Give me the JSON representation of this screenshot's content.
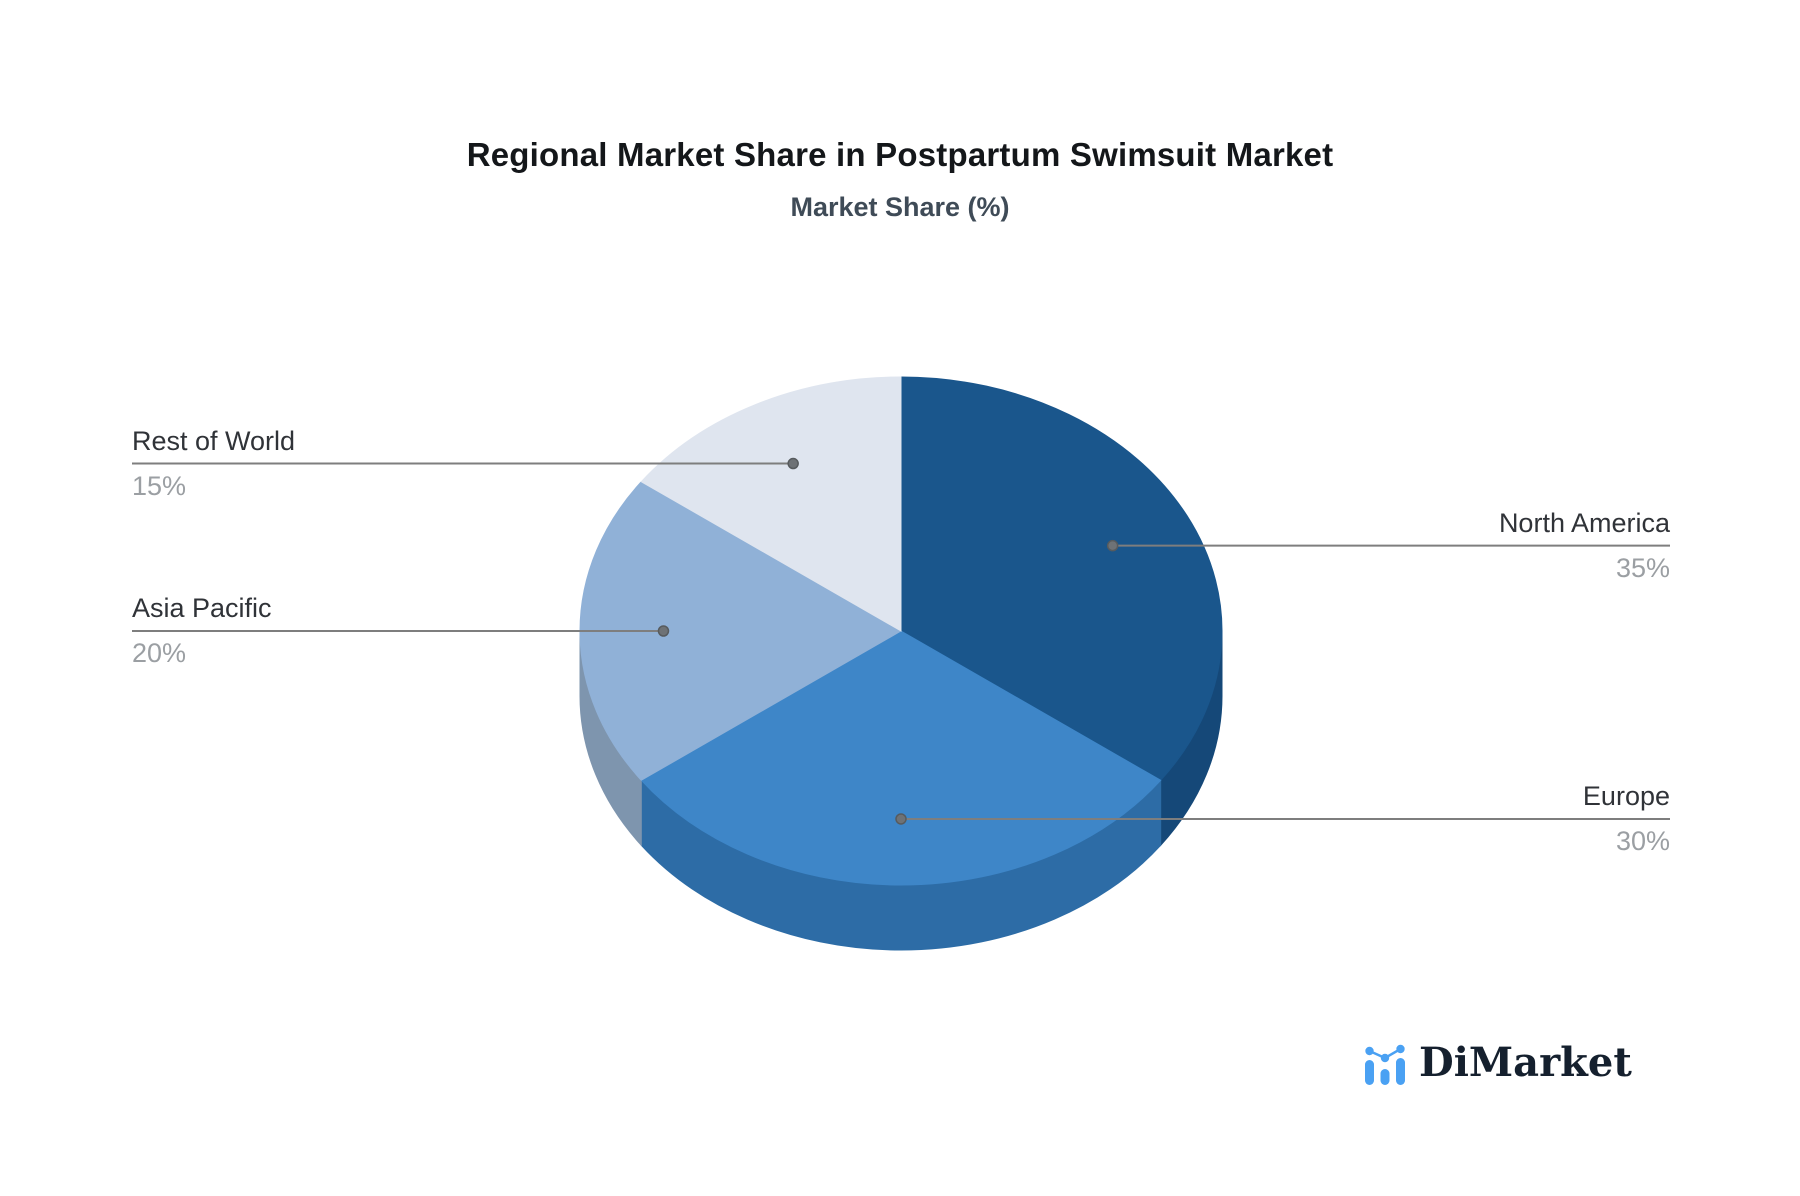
{
  "title": "Regional Market Share in Postpartum Swimsuit Market",
  "subtitle": "Market Share (%)",
  "logo": {
    "text": "DiMarket",
    "icon": "bar-chart-icon",
    "icon_color": "#4aa1f3",
    "text_color": "#15202e"
  },
  "colors": {
    "background": "#ffffff",
    "leader_line": "#7e7e7e",
    "leader_dot": "#6e7276",
    "label_text": "#303338",
    "percent_text": "#9b9fa3",
    "title_text": "#14171a",
    "subtitle_text": "#3f4b57"
  },
  "chart_data": {
    "type": "pie",
    "style": "3d",
    "title": "Regional Market Share in Postpartum Swimsuit Market",
    "subtitle": "Market Share (%)",
    "unit": "%",
    "direction": "clockwise",
    "start_angle_deg": 0,
    "legend_position": "none",
    "segments": [
      {
        "label": "North America",
        "value": 35,
        "pct_label": "35%",
        "color": "#1a568c",
        "side_color": "#154878",
        "callout_side": "right"
      },
      {
        "label": "Europe",
        "value": 30,
        "pct_label": "30%",
        "color": "#3e86c8",
        "side_color": "#2d6ca6",
        "callout_side": "right"
      },
      {
        "label": "Asia Pacific",
        "value": 20,
        "pct_label": "20%",
        "color": "#90b1d7",
        "side_color": "#7e95ae",
        "callout_side": "left"
      },
      {
        "label": "Rest of World",
        "value": 15,
        "pct_label": "15%",
        "color": "#dfe5ef",
        "side_color": "#c9d2e0",
        "callout_side": "left"
      }
    ]
  }
}
